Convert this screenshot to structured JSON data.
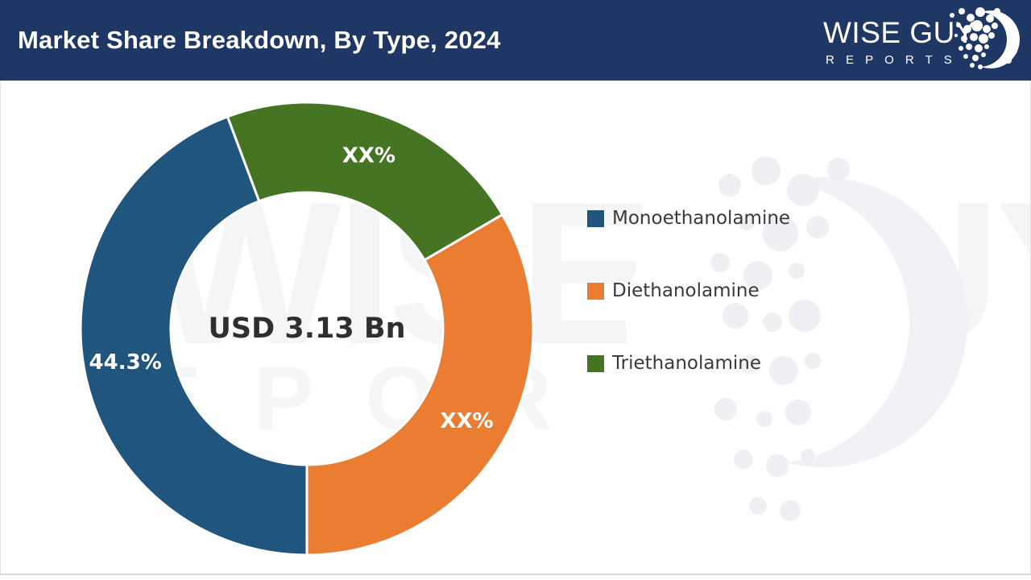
{
  "header": {
    "title": "Market Share Breakdown, By Type, 2024",
    "bg_color": "#1f3765",
    "logo": {
      "primary": "WISE GUY",
      "secondary": "R E P O R T S"
    }
  },
  "watermark": {
    "primary": "WISE GUY",
    "secondary": "EPOR"
  },
  "chart_data": {
    "type": "pie",
    "subtype": "donut",
    "title": "Market Share Breakdown, By Type, 2024",
    "center_label": "USD 3.13 Bn",
    "legend_position": "right",
    "grid": false,
    "segments": [
      {
        "label": "Monoethanolamine",
        "display_value": "44.3%",
        "pct": 44.3,
        "pct_is_estimate": false,
        "color": "#20557e"
      },
      {
        "label": "Diethanolamine",
        "display_value": "XX%",
        "pct": 33.4,
        "pct_is_estimate": true,
        "color": "#eb7d33"
      },
      {
        "label": "Triethanolamine",
        "display_value": "XX%",
        "pct": 22.3,
        "pct_is_estimate": true,
        "color": "#457423"
      }
    ]
  },
  "colors": {
    "header_bg": "#1f3765",
    "segment_divider": "#ffffff",
    "center_text": "#2f2f2f",
    "legend_text": "#3a3a3a",
    "bottom_border": "#d9d9d9",
    "watermark": "#f4f5f7"
  }
}
